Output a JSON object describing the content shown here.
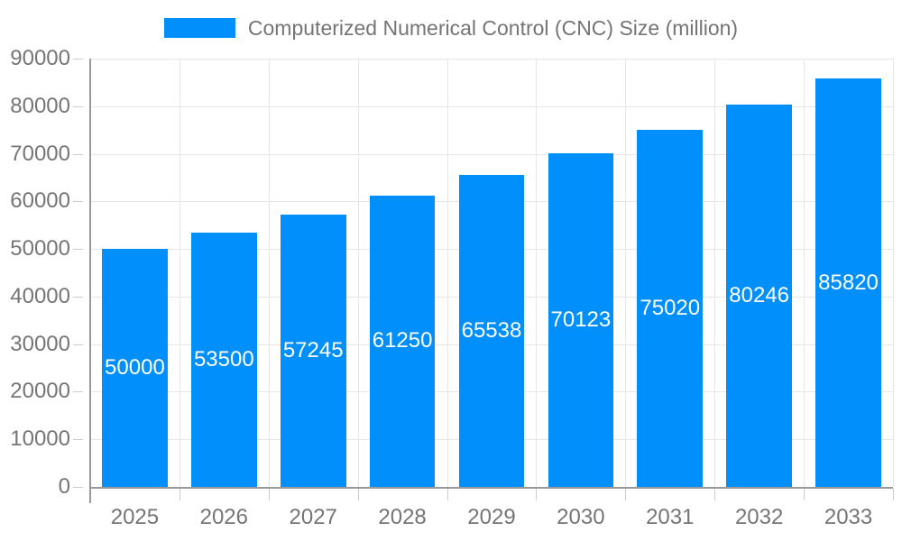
{
  "chart_data": {
    "type": "bar",
    "title": "Computerized Numerical Control (CNC) Size (million)",
    "legend_position": "top",
    "categories": [
      "2025",
      "2026",
      "2027",
      "2028",
      "2029",
      "2030",
      "2031",
      "2032",
      "2033"
    ],
    "values": [
      50000,
      53500,
      57245,
      61250,
      65538,
      70123,
      75020,
      80246,
      85820
    ],
    "data_labels": [
      "50000",
      "53500",
      "57245",
      "61250",
      "65538",
      "70123",
      "75020",
      "80246",
      "85820"
    ],
    "data_label_position": "inside-center",
    "xlabel": "",
    "ylabel": "",
    "ylim": [
      0,
      90000
    ],
    "y_tick_step": 10000,
    "y_tick_labels": [
      "0",
      "10000",
      "20000",
      "30000",
      "40000",
      "50000",
      "60000",
      "70000",
      "80000",
      "90000"
    ],
    "grid": "both",
    "colors": {
      "bar": "#008FFB",
      "grid": "#e6e6e6",
      "axis_line": "#999999",
      "tick": "#cccccc",
      "axis_text": "#757575",
      "bar_label_text": "#ffffff",
      "background": "#ffffff"
    }
  }
}
